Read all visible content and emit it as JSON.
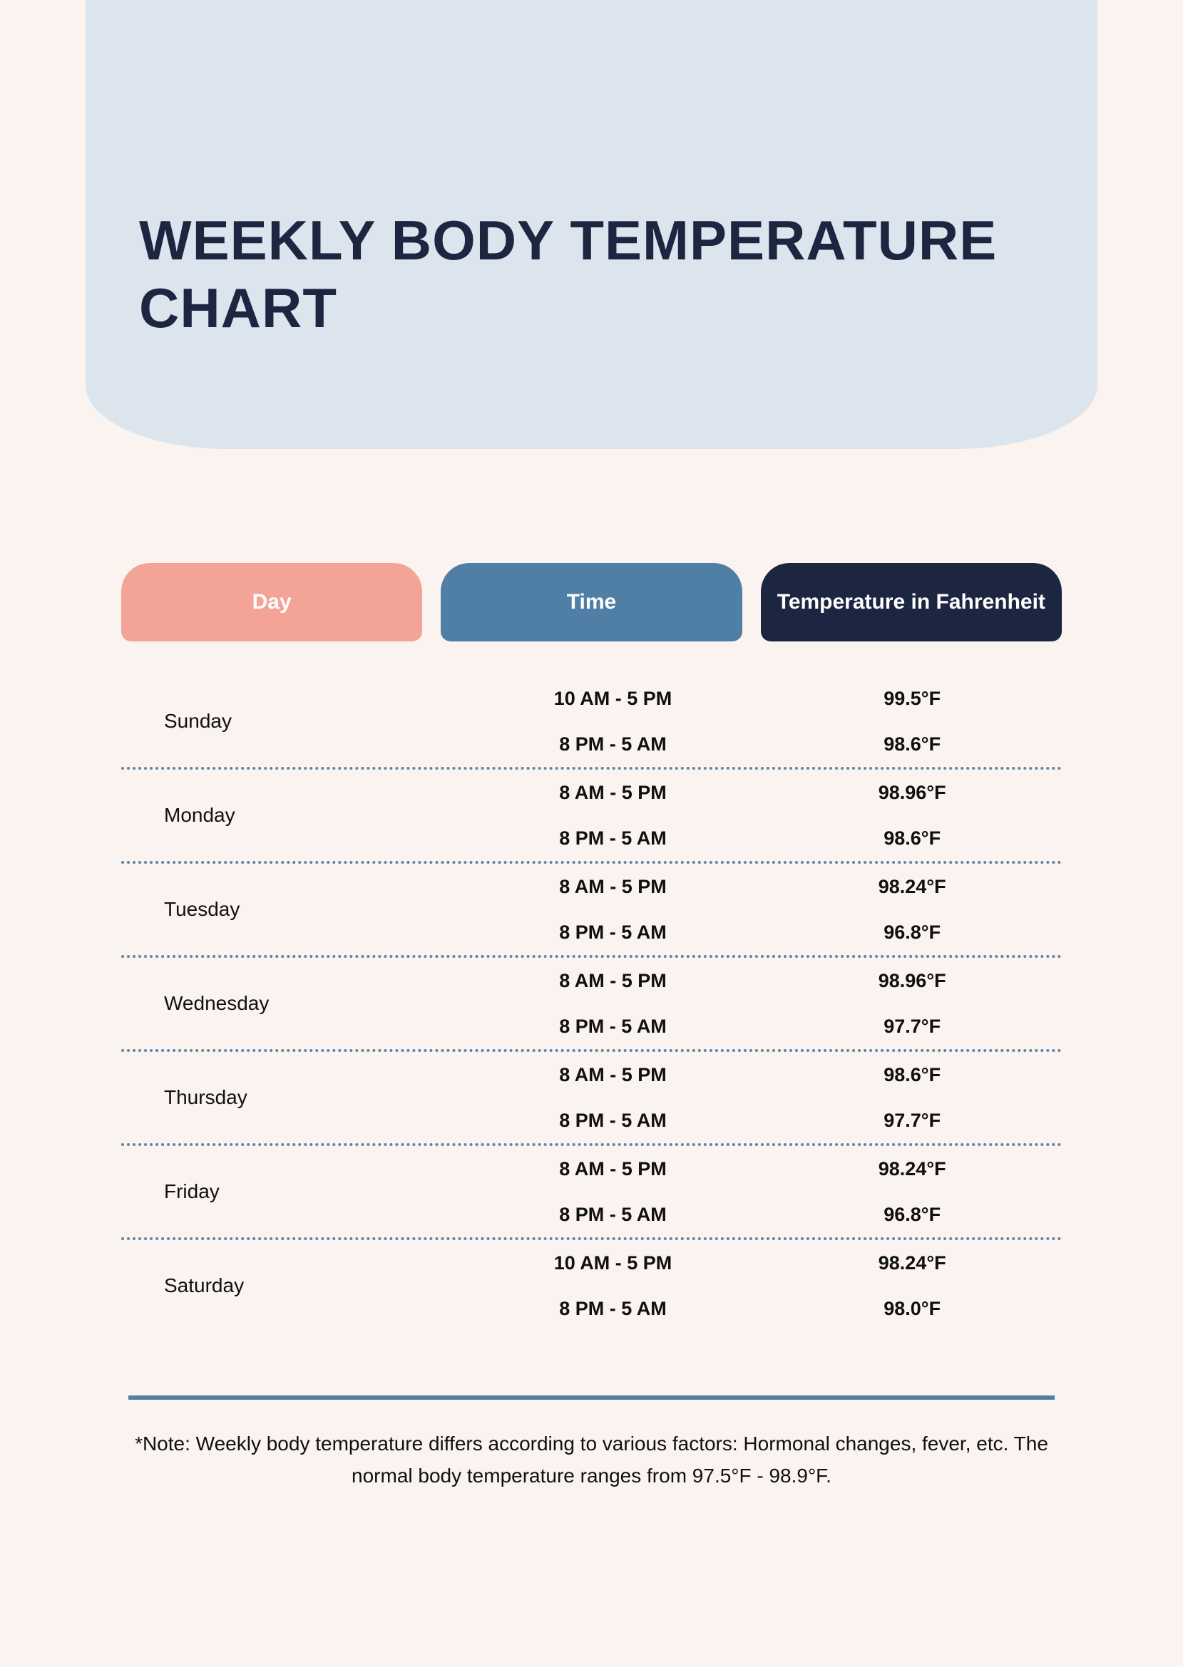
{
  "page": {
    "background_color": "#faf3ef",
    "header_band_color": "#dce5ee"
  },
  "title": "WEEKLY BODY TEMPERATURE CHART",
  "title_color": "#1d2641",
  "title_fontsize": 78,
  "columns": [
    {
      "label": "Day",
      "bg": "#f4a496",
      "fg": "#ffffff"
    },
    {
      "label": "Time",
      "bg": "#4f7fa4",
      "fg": "#ffffff"
    },
    {
      "label": "Temperature in Fahrenheit",
      "bg": "#1d2641",
      "fg": "#ffffff"
    }
  ],
  "header_pill_fontsize": 30,
  "cell_fontsize": 27,
  "divider_color": "#5c85a6",
  "footer_rule_color": "#4f7fa4",
  "rows": [
    {
      "day": "Sunday",
      "readings": [
        {
          "time": "10 AM - 5 PM",
          "temp": "99.5°F"
        },
        {
          "time": "8 PM - 5 AM",
          "temp": "98.6°F"
        }
      ]
    },
    {
      "day": "Monday",
      "readings": [
        {
          "time": "8 AM - 5 PM",
          "temp": "98.96°F"
        },
        {
          "time": "8 PM - 5 AM",
          "temp": "98.6°F"
        }
      ]
    },
    {
      "day": "Tuesday",
      "readings": [
        {
          "time": "8 AM - 5 PM",
          "temp": "98.24°F"
        },
        {
          "time": "8 PM - 5 AM",
          "temp": "96.8°F"
        }
      ]
    },
    {
      "day": "Wednesday",
      "readings": [
        {
          "time": "8 AM - 5 PM",
          "temp": "98.96°F"
        },
        {
          "time": "8 PM - 5 AM",
          "temp": "97.7°F"
        }
      ]
    },
    {
      "day": "Thursday",
      "readings": [
        {
          "time": "8 AM - 5 PM",
          "temp": "98.6°F"
        },
        {
          "time": "8 PM - 5 AM",
          "temp": "97.7°F"
        }
      ]
    },
    {
      "day": "Friday",
      "readings": [
        {
          "time": "8 AM - 5 PM",
          "temp": "98.24°F"
        },
        {
          "time": "8 PM - 5 AM",
          "temp": "96.8°F"
        }
      ]
    },
    {
      "day": "Saturday",
      "readings": [
        {
          "time": "10 AM - 5 PM",
          "temp": "98.24°F"
        },
        {
          "time": "8 PM - 5 AM",
          "temp": "98.0°F"
        }
      ]
    }
  ],
  "note": "*Note: Weekly body temperature differs according to various factors: Hormonal changes, fever, etc. The normal body temperature ranges from 97.5°F - 98.9°F."
}
